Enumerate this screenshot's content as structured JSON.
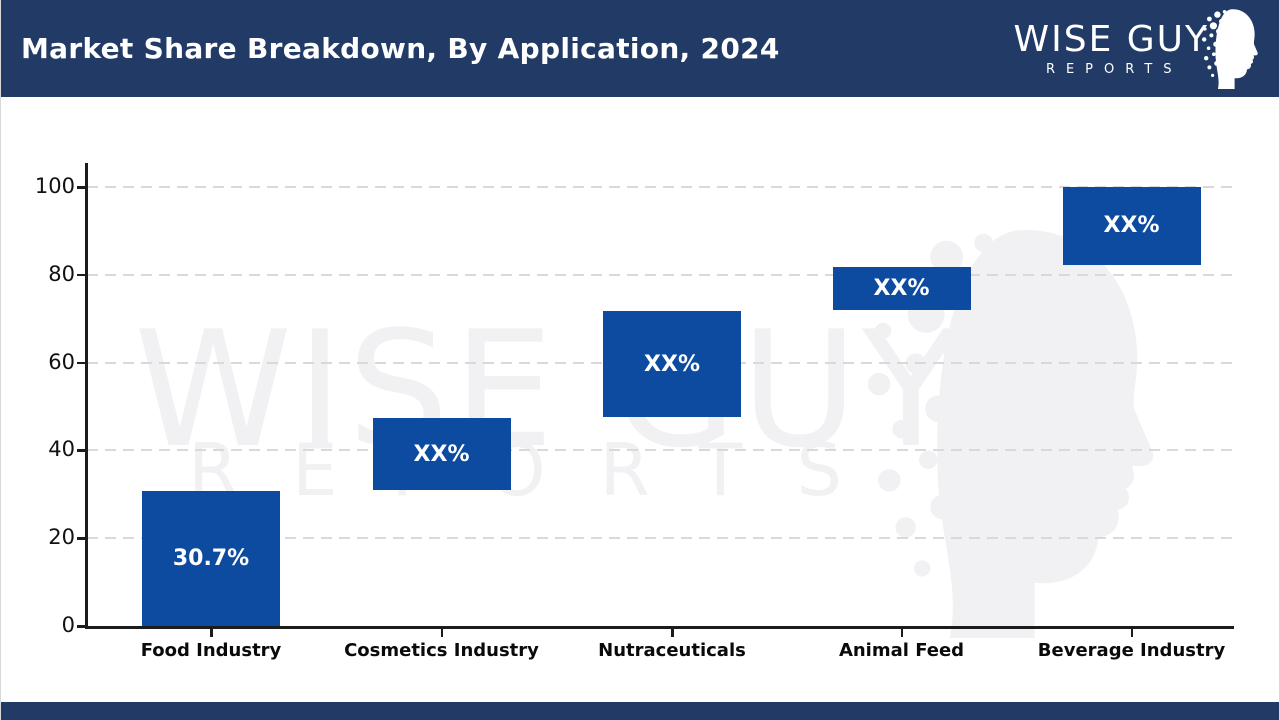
{
  "header": {
    "title": "Market Share Breakdown, By Application, 2024",
    "logo": {
      "name": "WISE GUY",
      "sub": "REPORTS"
    }
  },
  "watermark": {
    "line1": "WISE GUY",
    "line2": "REPORTS"
  },
  "chart_data": {
    "type": "bar",
    "subtype": "waterfall",
    "title": "Market Share Breakdown, By Application, 2024",
    "categories": [
      "Food Industry",
      "Cosmetics Industry",
      "Nutraceuticals",
      "Animal Feed",
      "Beverage Industry"
    ],
    "segments": [
      {
        "category": "Food Industry",
        "start": 0,
        "end": 30.7,
        "label": "30.7%"
      },
      {
        "category": "Cosmetics Industry",
        "start": 31,
        "end": 47.3,
        "label": "XX%"
      },
      {
        "category": "Nutraceuticals",
        "start": 47.5,
        "end": 71.8,
        "label": "XX%"
      },
      {
        "category": "Animal Feed",
        "start": 72,
        "end": 81.8,
        "label": "XX%"
      },
      {
        "category": "Beverage Industry",
        "start": 82.3,
        "end": 100,
        "label": "XX%"
      }
    ],
    "y_ticks": [
      0,
      20,
      40,
      60,
      80,
      100
    ],
    "ylim": [
      0,
      100
    ],
    "xlabel": "",
    "ylabel": "",
    "grid": "horizontal-dashed",
    "legend": "none",
    "bar_color": "#0c4ba0",
    "bar_label_color": "#ffffff"
  },
  "colors": {
    "header_bg": "#213a66",
    "footer_bg": "#213a66",
    "axis": "#1c1c1c",
    "gridline": "#d9d9d9",
    "watermark": "#f1f1f4"
  }
}
